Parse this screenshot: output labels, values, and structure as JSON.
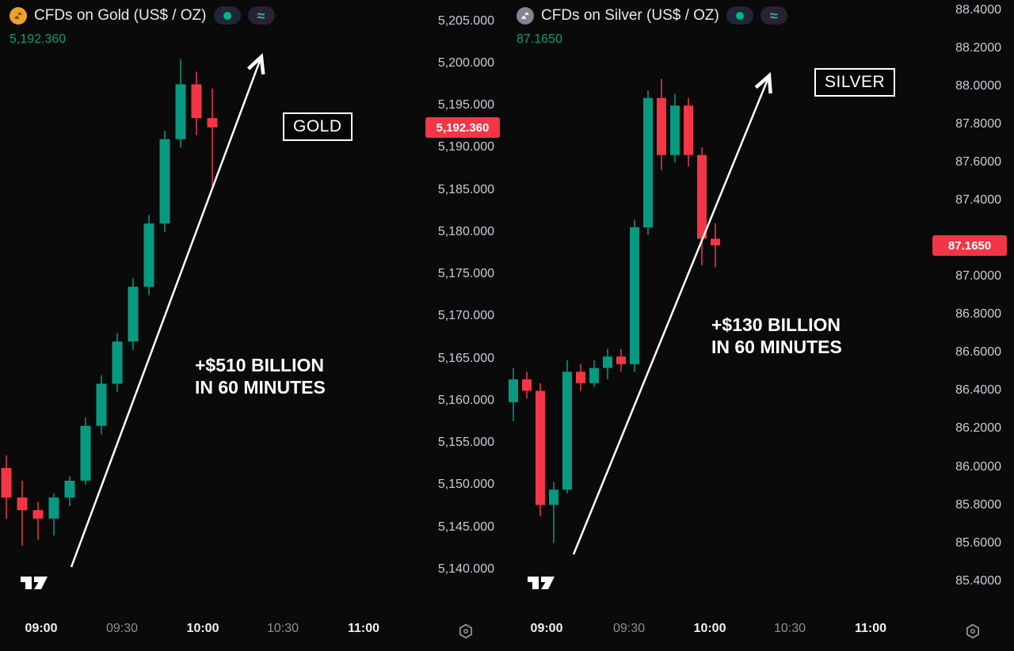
{
  "theme": {
    "background": "#0a0a0b",
    "candle_green": "#089981",
    "candle_red": "#f23645",
    "price_tag_bg": "#f23645",
    "price_up_text": "#0e9b76",
    "axis_text": "#c9ccd4",
    "time_major_text": "#eef0f4",
    "time_minor_text": "#8d909a",
    "annotation_text": "#ffffff",
    "status_dot": "#00b87c",
    "pill_background": "#1f2637",
    "wave_color": "#2cb5a0"
  },
  "panes": [
    {
      "header": {
        "title": "CFDs on Gold (US$ / OZ)",
        "price": "5,192.360",
        "wave_symbol": "≈"
      },
      "overlay_label": "GOLD",
      "annotation": {
        "line1": "+$510 BILLION",
        "line2": "IN 60 MINUTES"
      }
    },
    {
      "header": {
        "title": "CFDs on Silver (US$ / OZ)",
        "price": "87.1650",
        "wave_symbol": "≈"
      },
      "overlay_label": "SILVER",
      "annotation": {
        "line1": "+$130 BILLION",
        "line2": "IN 60 MINUTES"
      }
    }
  ],
  "chart_data": [
    {
      "type": "candlestick",
      "title": "CFDs on Gold (US$ / OZ)",
      "interval_minutes": 5,
      "ylim": [
        5135.0,
        5207.5
      ],
      "y_ticks": [
        5205,
        5200,
        5195,
        5190,
        5185,
        5180,
        5175,
        5170,
        5165,
        5160,
        5155,
        5150,
        5145,
        5140
      ],
      "y_tick_labels": [
        "5,205.000",
        "5,200.000",
        "5,195.000",
        "5,190.000",
        "5,185.000",
        "5,180.000",
        "5,175.000",
        "5,170.000",
        "5,165.000",
        "5,160.000",
        "5,155.000",
        "5,150.000",
        "5,145.000",
        "5,140.000"
      ],
      "x_ticks": [
        {
          "label": "09:00",
          "major": true
        },
        {
          "label": "09:30",
          "major": false
        },
        {
          "label": "10:00",
          "major": true
        },
        {
          "label": "10:30",
          "major": false
        },
        {
          "label": "11:00",
          "major": true
        }
      ],
      "current_price": 5192.36,
      "current_price_label": "5,192.360",
      "annotations": [
        "GOLD",
        "+$510 BILLION IN 60 MINUTES"
      ],
      "candles": [
        {
          "t": "09:00",
          "o": 5152.0,
          "h": 5153.5,
          "l": 5146.0,
          "c": 5148.5
        },
        {
          "t": "09:05",
          "o": 5148.5,
          "h": 5150.5,
          "l": 5142.8,
          "c": 5147.0
        },
        {
          "t": "09:10",
          "o": 5147.0,
          "h": 5148.0,
          "l": 5143.5,
          "c": 5146.0
        },
        {
          "t": "09:15",
          "o": 5146.0,
          "h": 5149.0,
          "l": 5144.0,
          "c": 5148.5
        },
        {
          "t": "09:20",
          "o": 5148.5,
          "h": 5151.0,
          "l": 5147.5,
          "c": 5150.5
        },
        {
          "t": "09:25",
          "o": 5150.5,
          "h": 5158.0,
          "l": 5150.0,
          "c": 5157.0
        },
        {
          "t": "09:30",
          "o": 5157.0,
          "h": 5163.0,
          "l": 5156.0,
          "c": 5162.0
        },
        {
          "t": "09:35",
          "o": 5162.0,
          "h": 5168.0,
          "l": 5161.0,
          "c": 5167.0
        },
        {
          "t": "09:40",
          "o": 5167.0,
          "h": 5174.5,
          "l": 5166.0,
          "c": 5173.5
        },
        {
          "t": "09:45",
          "o": 5173.5,
          "h": 5182.0,
          "l": 5172.5,
          "c": 5181.0
        },
        {
          "t": "09:50",
          "o": 5181.0,
          "h": 5192.0,
          "l": 5180.0,
          "c": 5191.0
        },
        {
          "t": "09:55",
          "o": 5191.0,
          "h": 5200.5,
          "l": 5190.0,
          "c": 5197.5
        },
        {
          "t": "10:00",
          "o": 5197.5,
          "h": 5199.0,
          "l": 5191.5,
          "c": 5193.5
        },
        {
          "t": "10:05",
          "o": 5193.5,
          "h": 5197.0,
          "l": 5185.5,
          "c": 5192.4
        }
      ]
    },
    {
      "type": "candlestick",
      "title": "CFDs on Silver (US$ / OZ)",
      "interval_minutes": 5,
      "ylim": [
        85.24,
        88.455
      ],
      "y_ticks": [
        88.4,
        88.2,
        88.0,
        87.8,
        87.6,
        87.4,
        87.0,
        86.8,
        86.6,
        86.4,
        86.2,
        86.0,
        85.8,
        85.6,
        85.4
      ],
      "y_tick_labels": [
        "88.4000",
        "88.2000",
        "88.0000",
        "87.8000",
        "87.6000",
        "87.4000",
        "87.0000",
        "86.8000",
        "86.6000",
        "86.4000",
        "86.2000",
        "86.0000",
        "85.8000",
        "85.6000",
        "85.4000"
      ],
      "x_ticks": [
        {
          "label": "09:00",
          "major": true
        },
        {
          "label": "09:30",
          "major": false
        },
        {
          "label": "10:00",
          "major": true
        },
        {
          "label": "10:30",
          "major": false
        },
        {
          "label": "11:00",
          "major": true
        }
      ],
      "current_price": 87.165,
      "current_price_label": "87.1650",
      "annotations": [
        "SILVER",
        "+$130 BILLION IN 60 MINUTES"
      ],
      "candles": [
        {
          "t": "09:00",
          "o": 86.34,
          "h": 86.52,
          "l": 86.24,
          "c": 86.46
        },
        {
          "t": "09:05",
          "o": 86.46,
          "h": 86.5,
          "l": 86.36,
          "c": 86.4
        },
        {
          "t": "09:10",
          "o": 86.4,
          "h": 86.44,
          "l": 85.74,
          "c": 85.8
        },
        {
          "t": "09:15",
          "o": 85.8,
          "h": 85.92,
          "l": 85.6,
          "c": 85.88
        },
        {
          "t": "09:20",
          "o": 85.88,
          "h": 86.56,
          "l": 85.86,
          "c": 86.5
        },
        {
          "t": "09:25",
          "o": 86.5,
          "h": 86.54,
          "l": 86.4,
          "c": 86.44
        },
        {
          "t": "09:30",
          "o": 86.44,
          "h": 86.56,
          "l": 86.42,
          "c": 86.52
        },
        {
          "t": "09:35",
          "o": 86.52,
          "h": 86.62,
          "l": 86.46,
          "c": 86.58
        },
        {
          "t": "09:40",
          "o": 86.58,
          "h": 86.62,
          "l": 86.5,
          "c": 86.54
        },
        {
          "t": "09:45",
          "o": 86.54,
          "h": 87.3,
          "l": 86.5,
          "c": 87.26
        },
        {
          "t": "09:50",
          "o": 87.26,
          "h": 87.98,
          "l": 87.22,
          "c": 87.94
        },
        {
          "t": "09:55",
          "o": 87.94,
          "h": 88.04,
          "l": 87.56,
          "c": 87.64
        },
        {
          "t": "10:00",
          "o": 87.64,
          "h": 87.96,
          "l": 87.6,
          "c": 87.9
        },
        {
          "t": "10:05",
          "o": 87.9,
          "h": 87.94,
          "l": 87.58,
          "c": 87.64
        },
        {
          "t": "10:10",
          "o": 87.64,
          "h": 87.68,
          "l": 87.06,
          "c": 87.2
        },
        {
          "t": "10:15",
          "o": 87.2,
          "h": 87.28,
          "l": 87.05,
          "c": 87.165
        }
      ]
    }
  ]
}
